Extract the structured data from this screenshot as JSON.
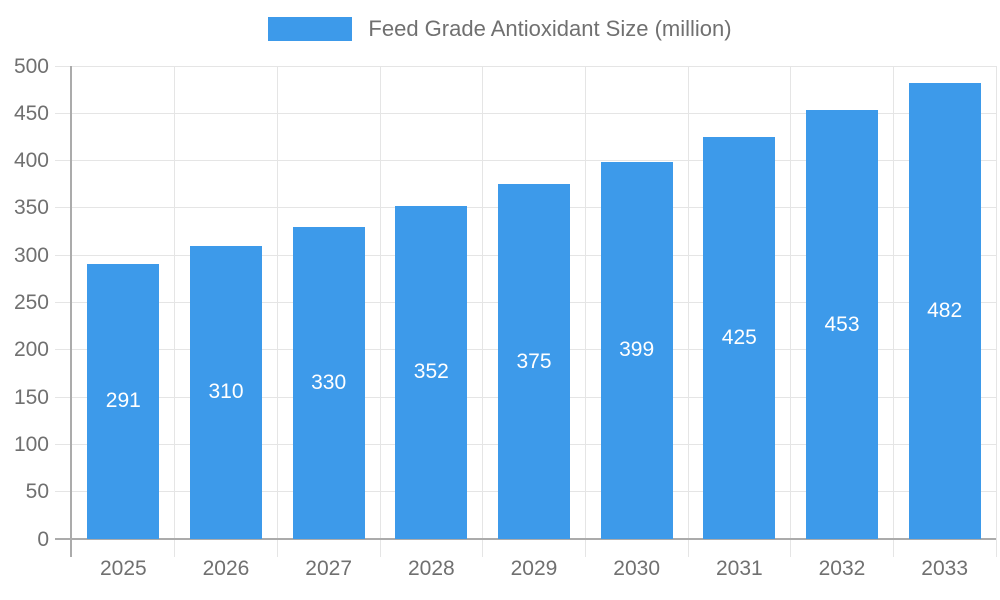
{
  "chart_data": {
    "type": "bar",
    "title": "Feed Grade Antioxidant Size (million)",
    "legend_entries": [
      "Feed Grade Antioxidant Size (million)"
    ],
    "legend_position": "top",
    "categories": [
      "2025",
      "2026",
      "2027",
      "2028",
      "2029",
      "2030",
      "2031",
      "2032",
      "2033"
    ],
    "series": [
      {
        "name": "Feed Grade Antioxidant Size (million)",
        "values": [
          291,
          310,
          330,
          352,
          375,
          399,
          425,
          453,
          482
        ]
      }
    ],
    "xlabel": "",
    "ylabel": "",
    "ylim": [
      0,
      500
    ],
    "ytick_step": 50,
    "grid": true,
    "colors": {
      "bar": "#3D9AEA",
      "bar_label": "#FFFFFF",
      "axis_line": "#ABABAB",
      "gridline": "#E5E5E5",
      "tick_label": "#707070",
      "legend_text": "#707070"
    }
  }
}
